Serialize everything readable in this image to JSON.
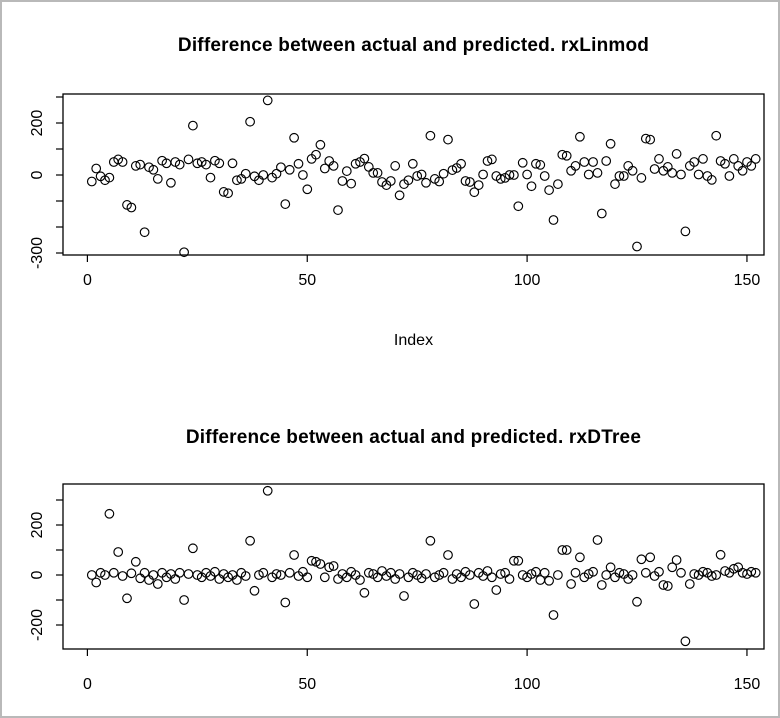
{
  "window": {
    "background": "#ffffff",
    "border_color": "#b9b9b9"
  },
  "chart_data": [
    {
      "type": "scatter",
      "title": "Difference between actual and predicted. rxLinmod",
      "xlabel": "Index",
      "ylabel": "",
      "marker": "open-circle",
      "grid": false,
      "legend": "none",
      "xlim": [
        -5,
        158
      ],
      "ylim": [
        -308,
        311
      ],
      "x_ticks": [
        0,
        50,
        100,
        150
      ],
      "x_tick_labels": [
        "0",
        "50",
        "100",
        "150"
      ],
      "y_ticks": [
        300,
        200,
        100,
        0,
        -100,
        -200,
        -300
      ],
      "y_tick_labels": [
        "",
        "200",
        "",
        "0",
        "",
        "",
        "-300"
      ],
      "x_is_index_from": 1,
      "values": [
        -25,
        25,
        -5,
        -20,
        -10,
        50,
        60,
        50,
        -115,
        -125,
        35,
        40,
        -220,
        30,
        20,
        -15,
        55,
        45,
        -30,
        50,
        40,
        -297,
        60,
        190,
        45,
        50,
        40,
        -10,
        55,
        45,
        -65,
        -70,
        45,
        -20,
        -15,
        5,
        205,
        -5,
        -20,
        0,
        287,
        -10,
        5,
        30,
        -112,
        20,
        143,
        43,
        0,
        -55,
        62,
        78,
        116,
        25,
        54,
        35,
        -135,
        -23,
        15,
        -33,
        43,
        50,
        63,
        31,
        8,
        8,
        -27,
        -39,
        -23,
        35,
        -78,
        -35,
        -20,
        43,
        -4,
        2,
        -30,
        151,
        -15,
        -25,
        5,
        136,
        19,
        27,
        43,
        -23,
        -27,
        -66,
        -39,
        2,
        54,
        60,
        -4,
        -15,
        -11,
        0,
        0,
        -120,
        47,
        2,
        -43,
        43,
        39,
        -4,
        -58,
        -173,
        -35,
        78,
        74,
        16,
        35,
        147,
        50,
        2,
        50,
        8,
        -148,
        54,
        120,
        -35,
        -4,
        -4,
        35,
        16,
        -275,
        -11,
        140,
        136,
        23,
        62,
        16,
        31,
        8,
        81,
        2,
        -217,
        35,
        50,
        2,
        62,
        -4,
        -19,
        151,
        54,
        43,
        -4,
        62,
        35,
        16,
        50,
        35,
        62
      ]
    },
    {
      "type": "scatter",
      "title": "Difference between actual and predicted. rxDTree",
      "xlabel": "",
      "ylabel": "",
      "marker": "open-circle",
      "grid": false,
      "legend": "none",
      "xlim": [
        -5,
        158
      ],
      "ylim": [
        -296,
        364
      ],
      "x_ticks": [
        0,
        50,
        100,
        150
      ],
      "x_tick_labels": [
        "0",
        "50",
        "100",
        "150"
      ],
      "y_ticks": [
        300,
        200,
        100,
        0,
        -100,
        -200
      ],
      "y_tick_labels": [
        "",
        "200",
        "",
        "0",
        "",
        "-200"
      ],
      "x_is_index_from": 1,
      "values": [
        0,
        -30,
        9,
        0,
        245,
        9,
        92,
        -4,
        -93,
        7,
        53,
        -13,
        9,
        -20,
        0,
        -36,
        9,
        -9,
        4,
        -16,
        9,
        -100,
        4,
        107,
        0,
        -9,
        9,
        -4,
        13,
        -16,
        4,
        -9,
        0,
        -20,
        9,
        -4,
        137,
        -63,
        0,
        9,
        337,
        -9,
        4,
        0,
        -110,
        9,
        80,
        -4,
        13,
        -9,
        57,
        53,
        44,
        -9,
        31,
        36,
        -16,
        4,
        -9,
        13,
        0,
        -20,
        -71,
        9,
        4,
        -9,
        16,
        -4,
        9,
        -16,
        4,
        -84,
        -9,
        9,
        0,
        -13,
        4,
        137,
        -9,
        0,
        9,
        80,
        -16,
        4,
        -9,
        13,
        0,
        -116,
        9,
        -4,
        16,
        -9,
        -60,
        4,
        9,
        -16,
        57,
        57,
        0,
        -9,
        4,
        13,
        -20,
        9,
        -23,
        -160,
        0,
        100,
        100,
        -36,
        9,
        71,
        -9,
        4,
        13,
        140,
        -40,
        0,
        31,
        -9,
        9,
        4,
        -16,
        0,
        -107,
        63,
        9,
        71,
        -4,
        13,
        -40,
        -44,
        31,
        60,
        9,
        -265,
        -36,
        4,
        0,
        13,
        9,
        -4,
        0,
        81,
        16,
        9,
        25,
        31,
        9,
        4,
        13,
        9
      ]
    }
  ]
}
